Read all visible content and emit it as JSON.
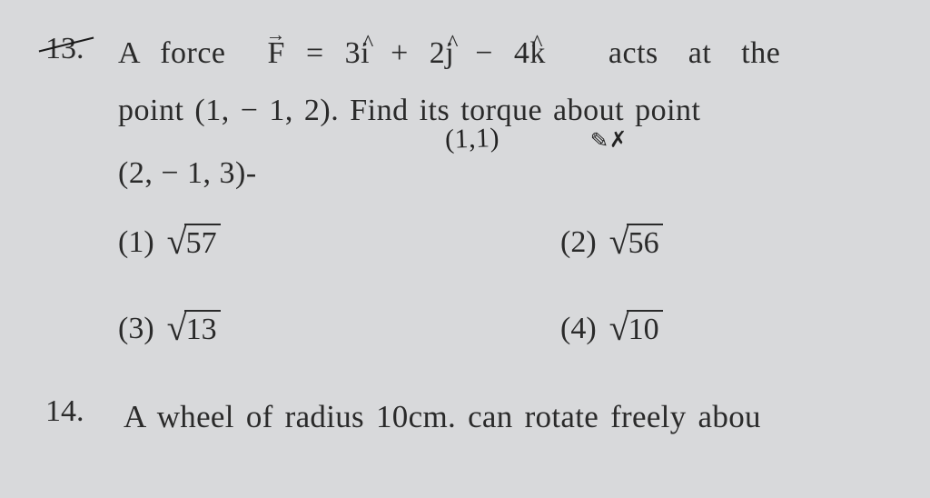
{
  "page": {
    "background_color": "#d8d9db",
    "text_color": "#2a2a2a",
    "font_family": "Times New Roman",
    "base_fontsize": 34
  },
  "q13": {
    "number": "13.",
    "line1_a": "A",
    "line1_b": "force",
    "F": "F",
    "eq": " = 3",
    "i": "i",
    "plus": " + 2",
    "j": "j",
    "minus": " − 4",
    "k": "k",
    "line1_tail": "acts   at   the",
    "line2": "point (1, − 1, 2). Find its torque about point",
    "handwriting1": "(1,1)",
    "handwriting2": "✎✗",
    "line3": "(2, − 1, 3)-",
    "options": {
      "o1_label": "(1)",
      "o1_val": "57",
      "o2_label": "(2)",
      "o2_val": "56",
      "o3_label": "(3)",
      "o3_val": "13",
      "o4_label": "(4)",
      "o4_val": "10"
    }
  },
  "q14": {
    "number": "14.",
    "text": "A wheel of radius 10cm. can rotate freely abou"
  }
}
